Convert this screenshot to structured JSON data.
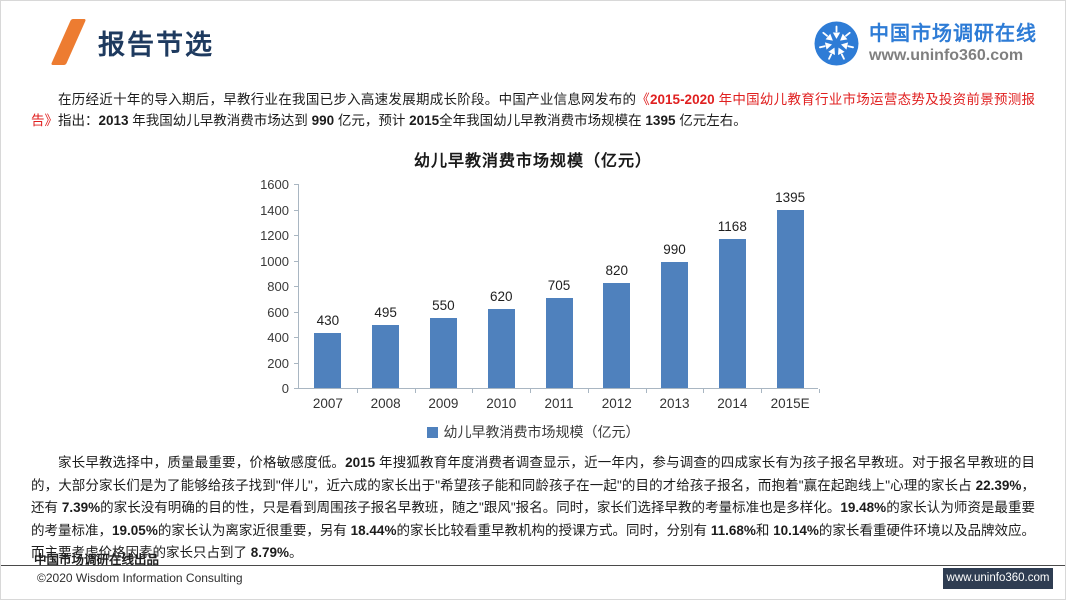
{
  "page": {
    "title": "报告节选",
    "logo": {
      "name": "中国市场调研在线",
      "url": "www.uninfo360.com"
    }
  },
  "colors": {
    "accent_orange": "#ed7c31",
    "title_navy": "#1e3a5f",
    "logo_blue": "#2e7cd6",
    "highlight_red": "#e02020",
    "bar_blue": "#4f81bd",
    "badge_navy": "#2f3d52"
  },
  "paragraph1": [
    {
      "t": "在历经近十年的导入期后，早教行业在我国已步入高速发展期成长阶段。中国产业信息网发布的"
    },
    {
      "t": "《",
      "c": "#e02020"
    },
    {
      "t": "2015-2020",
      "c": "#e02020",
      "b": true
    },
    {
      "t": " 年中国幼儿教育行业市场运营态势及投资前景预测报告》",
      "c": "#e02020"
    },
    {
      "t": "指出："
    },
    {
      "t": "2013",
      "b": true
    },
    {
      "t": " 年我国幼儿早教消费市场达到 "
    },
    {
      "t": "990",
      "b": true
    },
    {
      "t": " 亿元，预计 "
    },
    {
      "t": "2015",
      "b": true
    },
    {
      "t": "全年我国幼儿早教消费市场规模在 "
    },
    {
      "t": "1395",
      "b": true
    },
    {
      "t": " 亿元左右。"
    }
  ],
  "chart_data": {
    "type": "bar",
    "title": "幼儿早教消费市场规模（亿元）",
    "categories": [
      "2007",
      "2008",
      "2009",
      "2010",
      "2011",
      "2012",
      "2013",
      "2014",
      "2015E"
    ],
    "values": [
      430,
      495,
      550,
      620,
      705,
      820,
      990,
      1168,
      1395
    ],
    "legend": "幼儿早教消费市场规模（亿元）",
    "xlabel": "",
    "ylabel": "",
    "ylim": [
      0,
      1600
    ],
    "yticks": [
      0,
      200,
      400,
      600,
      800,
      1000,
      1200,
      1400,
      1600
    ],
    "grid": false,
    "legend_position": "bottom",
    "bar_color": "#4f81bd"
  },
  "paragraph2": [
    {
      "t": "家长早教选择中，质量最重要，价格敏感度低。"
    },
    {
      "t": "2015",
      "b": true
    },
    {
      "t": " 年搜狐教育年度消费者调查显示，近一年内，参与调查的四成家长有为孩子报名早教班。对于报名早教班的目的，大部分家长们是为了能够给孩子找到\"伴儿\"，近六成的家长出于\"希望孩子能和同龄孩子在一起\"的目的才给孩子报名，而抱着\"赢在起跑线上\"心理的家长占 "
    },
    {
      "t": "22.39%",
      "b": true
    },
    {
      "t": "，还有 "
    },
    {
      "t": "7.39%",
      "b": true
    },
    {
      "t": "的家长没有明确的目的性，只是看到周围孩子报名早教班，随之\"跟风\"报名。同时，家长们选择早教的考量标准也是多样化。"
    },
    {
      "t": "19.48%",
      "b": true
    },
    {
      "t": "的家长认为师资是最重要的考量标准，"
    },
    {
      "t": "19.05%",
      "b": true
    },
    {
      "t": "的家长认为离家近很重要，另有 "
    },
    {
      "t": "18.44%",
      "b": true
    },
    {
      "t": "的家长比较看重早教机构的授课方式。同时，分别有 "
    },
    {
      "t": "11.68%",
      "b": true
    },
    {
      "t": "和 "
    },
    {
      "t": "10.14%",
      "b": true
    },
    {
      "t": "的家长看重硬件环境以及品牌效应。而主要考虑价格因素的家长只占到了 "
    },
    {
      "t": "8.79%",
      "b": true
    },
    {
      "t": "。"
    }
  ],
  "footer": {
    "produced_by": "中国市场调研在线出品",
    "copyright": "©2020 Wisdom Information Consulting",
    "badge_url": "www.uninfo360.com"
  }
}
